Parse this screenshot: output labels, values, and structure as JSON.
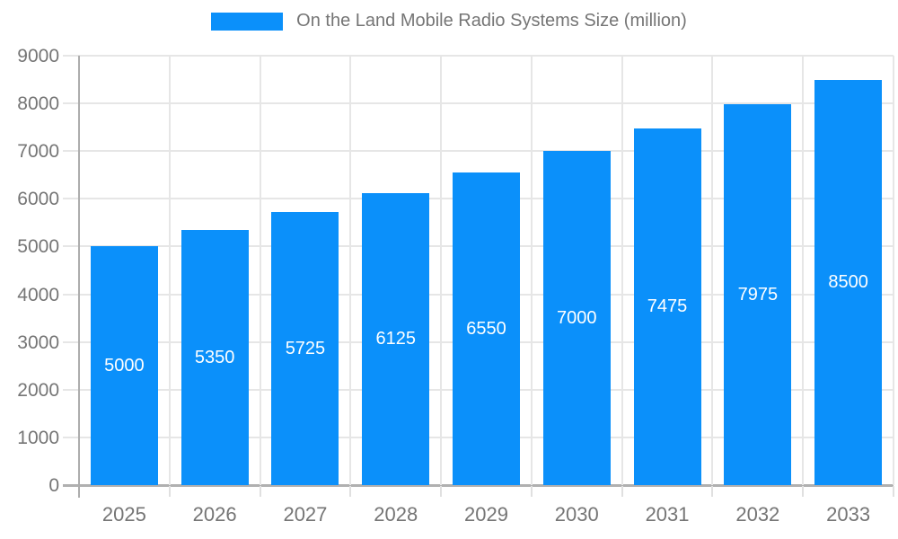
{
  "legend": {
    "label": "On the Land Mobile Radio Systems Size (million)"
  },
  "chart_data": {
    "type": "bar",
    "title": "On the Land Mobile Radio Systems Size (million)",
    "categories": [
      "2025",
      "2026",
      "2027",
      "2028",
      "2029",
      "2030",
      "2031",
      "2032",
      "2033"
    ],
    "values": [
      5000,
      5350,
      5725,
      6125,
      6550,
      7000,
      7475,
      7975,
      8500
    ],
    "value_labels": [
      "5000",
      "5350",
      "5725",
      "6125",
      "6550",
      "7000",
      "7475",
      "7975",
      "8500"
    ],
    "xlabel": "",
    "ylabel": "",
    "ylim": [
      0,
      9000
    ],
    "ytick_step": 1000,
    "ytick_labels": [
      "0",
      "1000",
      "2000",
      "3000",
      "4000",
      "5000",
      "6000",
      "7000",
      "8000",
      "9000"
    ],
    "grid": true,
    "legend_position": "top",
    "colors": {
      "bar": "#0b90fa",
      "grid": "#e6e6e6",
      "axis": "#adadad",
      "tick": "#e0e0e0",
      "tick_label": "#757575",
      "bar_value_label": "#ffffff",
      "background": "#ffffff"
    }
  }
}
